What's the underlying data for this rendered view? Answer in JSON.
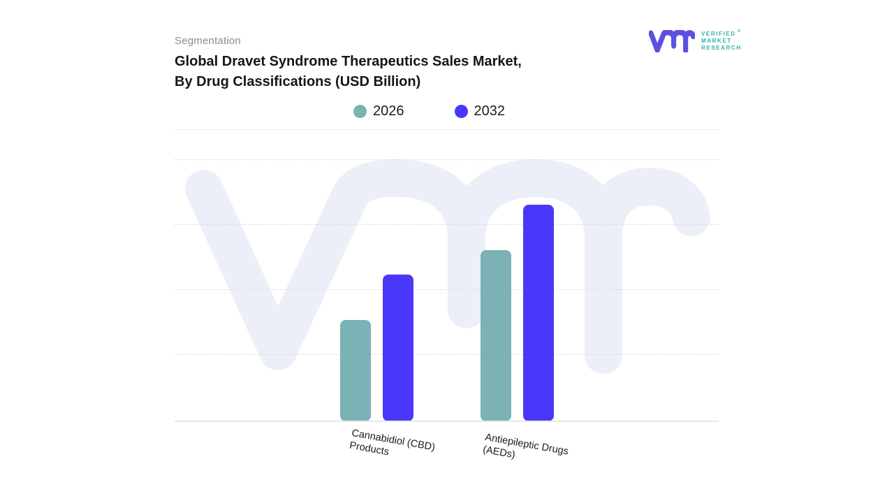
{
  "header": {
    "eyebrow": "Segmentation",
    "title_line1": "Global Dravet Syndrome Therapeutics Sales Market,",
    "title_line2": "By Drug Classifications (USD Billion)"
  },
  "logo": {
    "line1": "VERIFIED",
    "line2": "MARKET",
    "line3": "RESEARCH",
    "registered_mark": "®"
  },
  "legend": [
    {
      "label": "2026",
      "color": "#7ab2b5"
    },
    {
      "label": "2032",
      "color": "#4a38fa"
    }
  ],
  "chart_data": {
    "type": "bar",
    "title": "Global Dravet Syndrome Therapeutics Sales Market, By Drug Classifications (USD Billion)",
    "unit": "USD Billion",
    "categories": [
      "Cannabidiol (CBD) Products",
      "Antiepileptic Drugs (AEDs)"
    ],
    "series": [
      {
        "name": "2026",
        "color": "#7ab2b5",
        "values": [
          1.55,
          2.62
        ]
      },
      {
        "name": "2032",
        "color": "#4a38fa",
        "values": [
          2.25,
          3.32
        ]
      }
    ],
    "value_axis_visible": false,
    "value_scale": "relative gridline units (chart shows no numeric axis labels)",
    "gridline_count": 4,
    "grid_style": "dashed",
    "legend_position": "top-center"
  },
  "axis_labels": [
    {
      "line1": "Cannabidiol (CBD)",
      "line2": "Products"
    },
    {
      "line1": "Antiepileptic Drugs",
      "line2": "(AEDs)"
    }
  ],
  "colors": {
    "series_2026": "#7ab2b5",
    "series_2032": "#4a38fa",
    "logo_glyph": "#5c50e0",
    "logo_text": "#2fb3a9",
    "watermark": "#edeff8",
    "eyebrow_text": "#8b8b8b",
    "title_text": "#161616"
  }
}
